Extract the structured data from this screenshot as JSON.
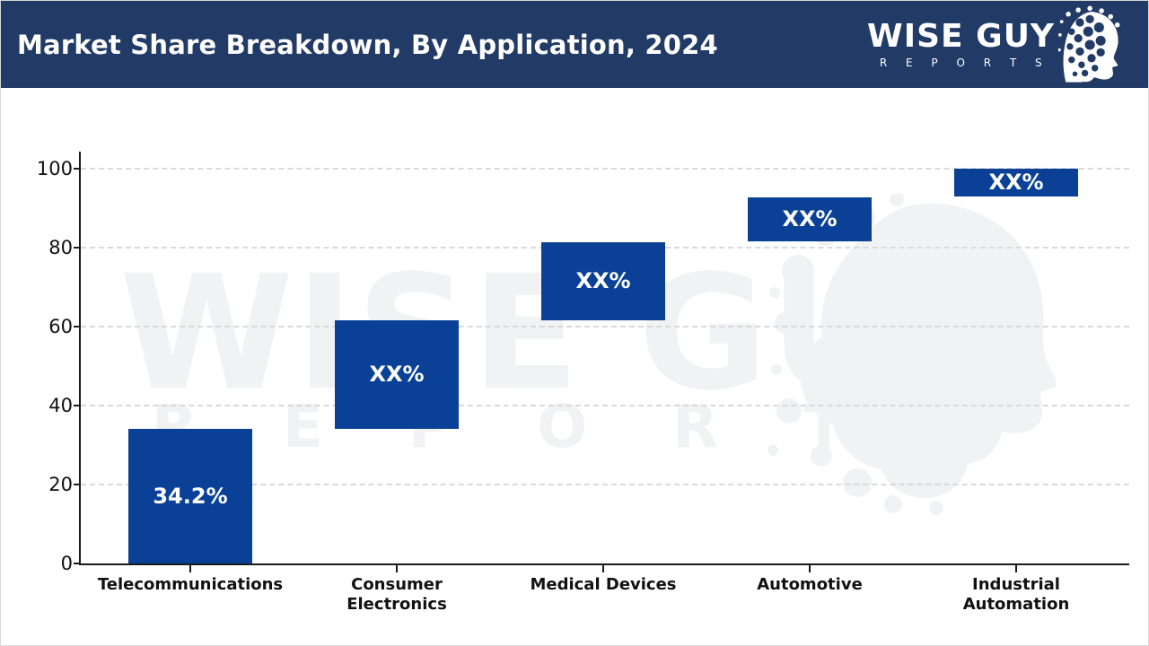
{
  "header": {
    "title": "Market Share Breakdown, By Application, 2024",
    "logo": {
      "wordmark": "WISE GUY",
      "subtext": "R E P O R T S"
    }
  },
  "watermark": {
    "line1": "WISE GUY",
    "line2": "R E P O R T S"
  },
  "colors": {
    "header_bg": "#213a66",
    "bar": "#0a4196",
    "grid": "#d9d9d9",
    "axis": "#1a1a1a",
    "watermark": "#f1f2f4",
    "bar_label": "#ffffff",
    "title_text": "#ffffff"
  },
  "chart_data": {
    "type": "bar",
    "subtype": "waterfall",
    "title": "Market Share Breakdown, By Application, 2024",
    "xlabel": "",
    "ylabel": "",
    "categories": [
      "Telecommunications",
      "Consumer Electronics",
      "Medical Devices",
      "Automotive",
      "Industrial Automation"
    ],
    "category_label_lines": [
      [
        "Telecommunications"
      ],
      [
        "Consumer",
        "Electronics"
      ],
      [
        "Medical Devices"
      ],
      [
        "Automotive"
      ],
      [
        "Industrial",
        "Automation"
      ]
    ],
    "segments": [
      {
        "category": "Telecommunications",
        "start": 0,
        "end": 34.2,
        "label": "34.2%"
      },
      {
        "category": "Consumer Electronics",
        "start": 34.2,
        "end": 61.5,
        "label": "XX%"
      },
      {
        "category": "Medical Devices",
        "start": 61.7,
        "end": 81.4,
        "label": "XX%"
      },
      {
        "category": "Automotive",
        "start": 81.7,
        "end": 92.8,
        "label": "XX%"
      },
      {
        "category": "Industrial Automation",
        "start": 93.0,
        "end": 100.0,
        "label": "XX%"
      }
    ],
    "yticks": [
      0,
      20,
      40,
      60,
      80,
      100
    ],
    "ylim": [
      0,
      104
    ],
    "grid": true,
    "grid_style": "dashed",
    "legend": false
  }
}
